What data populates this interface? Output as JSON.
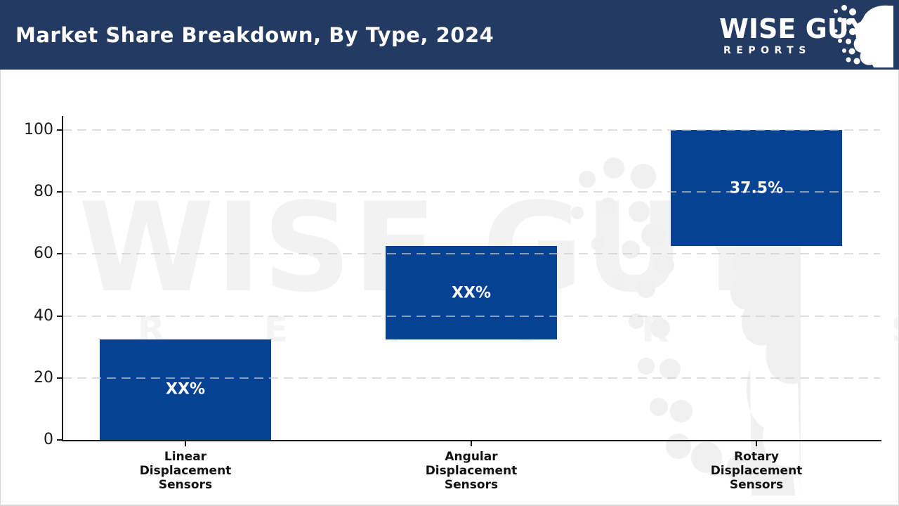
{
  "page": {
    "background": "#ffffff",
    "frame_color": "#d9d9d9"
  },
  "header": {
    "background": "#233a63",
    "title": "Market Share Breakdown, By Type, 2024",
    "title_color": "#ffffff",
    "logo": {
      "wise_guy": "WISE GUY",
      "reports": "R E P O R T S"
    }
  },
  "watermark": {
    "wise_guy": "WISE GUY",
    "reports": "R E P O R T S"
  },
  "chart_data": {
    "type": "bar",
    "variant": "floating-waterfall",
    "title": "Market Share Breakdown, By Type, 2024",
    "bar_color": "#054294",
    "bar_label_color": "#ffffff",
    "axis_color": "#1a1a1a",
    "grid": {
      "show": true,
      "style": "dashed",
      "orientation": "horizontal",
      "color": "#cccccc"
    },
    "ylim": [
      0,
      105
    ],
    "yticks": [
      0,
      20,
      40,
      60,
      80,
      100
    ],
    "xlabel": "",
    "ylabel": "",
    "categories": [
      {
        "lines": [
          "Linear",
          "Displacement",
          "Sensors"
        ]
      },
      {
        "lines": [
          "Angular",
          "Displacement",
          "Sensors"
        ]
      },
      {
        "lines": [
          "Rotary",
          "Displacement",
          "Sensors"
        ]
      }
    ],
    "bars": [
      {
        "category": "Linear Displacement Sensors",
        "start": 0,
        "end": 32.5,
        "label": "XX%"
      },
      {
        "category": "Angular Displacement Sensors",
        "start": 32.5,
        "end": 62.5,
        "label": "XX%"
      },
      {
        "category": "Rotary Displacement Sensors",
        "start": 62.5,
        "end": 100,
        "label": "37.5%"
      }
    ]
  }
}
